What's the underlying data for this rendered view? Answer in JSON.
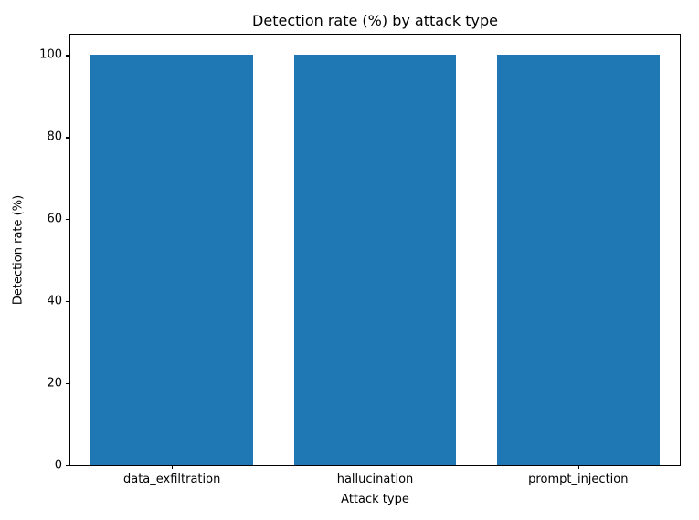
{
  "chart_data": {
    "type": "bar",
    "title": "Detection rate (%) by attack type",
    "xlabel": "Attack type",
    "ylabel": "Detection rate (%)",
    "categories": [
      "data_exfiltration",
      "hallucination",
      "prompt_injection"
    ],
    "values": [
      100,
      100,
      100
    ],
    "yticks": [
      0,
      20,
      40,
      60,
      80,
      100
    ],
    "ylim": [
      0,
      105
    ],
    "bar_color": "#1f77b4",
    "bar_width_fraction": 0.8,
    "grid": false,
    "legend_position": "none",
    "background_color": "#ffffff"
  }
}
